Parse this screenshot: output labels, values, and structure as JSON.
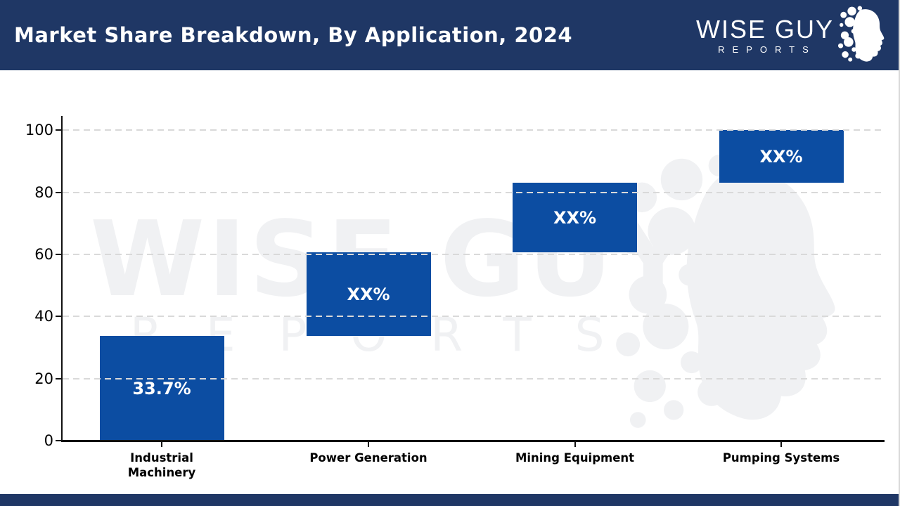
{
  "header": {
    "title": "Market Share Breakdown, By Application, 2024",
    "logo": {
      "line1": "WISE GUY",
      "line2": "REPORTS"
    }
  },
  "watermark": {
    "line1": "WISE GUY",
    "line2": "REPORTS"
  },
  "colors": {
    "header_navy": "#1f3765",
    "bar_blue": "#0c4da2",
    "gridline_gray": "#d9d9d9",
    "watermark_gray": "#f0f1f3",
    "axis_black": "#111111",
    "bar_label_white": "#ffffff"
  },
  "chart_data": {
    "type": "bar",
    "subtype": "waterfall",
    "title": "Market Share Breakdown, By Application, 2024",
    "categories": [
      "Industrial Machinery",
      "Power Generation",
      "Mining Equipment",
      "Pumping Systems"
    ],
    "category_lines": [
      [
        "Industrial",
        "Machinery"
      ],
      [
        "Power Generation"
      ],
      [
        "Mining Equipment"
      ],
      [
        "Pumping Systems"
      ]
    ],
    "segments": [
      {
        "category": "Industrial Machinery",
        "start": 0,
        "end": 33.7,
        "label": "33.7%"
      },
      {
        "category": "Power Generation",
        "start": 33.7,
        "end": 60.7,
        "label": "XX%"
      },
      {
        "category": "Mining Equipment",
        "start": 60.7,
        "end": 83,
        "label": "XX%"
      },
      {
        "category": "Pumping Systems",
        "start": 83,
        "end": 100,
        "label": "XX%"
      }
    ],
    "yticks": [
      0,
      20,
      40,
      60,
      80,
      100
    ],
    "ylim": [
      0,
      100
    ],
    "xlabel": "",
    "ylabel": "",
    "grid": "horizontal-dashed",
    "legend": "none"
  }
}
